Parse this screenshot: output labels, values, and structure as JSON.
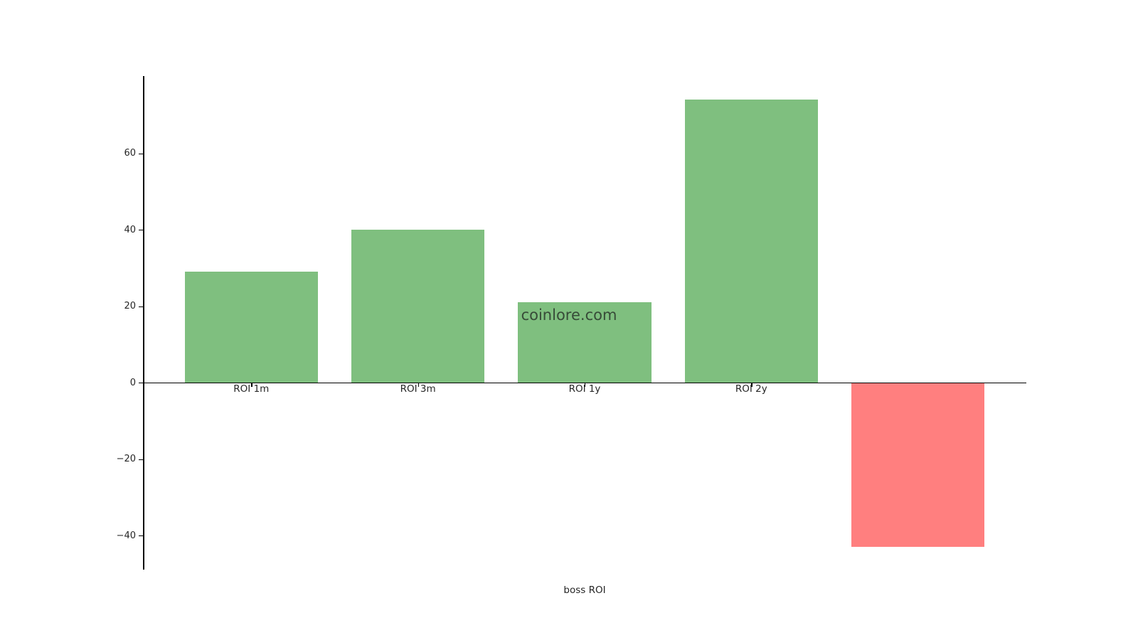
{
  "watermark": "coinlore.com",
  "colors": {
    "positive_bar": "#7fbf7f",
    "negative_bar": "#ff7f7f",
    "axis": "#000000",
    "text": "#262626"
  },
  "chart_data": {
    "type": "bar",
    "title": "",
    "xlabel": "boss ROI",
    "ylabel": "",
    "categories": [
      "ROI 1m",
      "ROI 3m",
      "ROI 1y",
      "ROI 2y",
      ""
    ],
    "values": [
      29,
      40,
      21,
      74,
      -43
    ],
    "bar_colors": [
      "#7fbf7f",
      "#7fbf7f",
      "#7fbf7f",
      "#7fbf7f",
      "#ff7f7f"
    ],
    "yticks": [
      60,
      40,
      20,
      0,
      -20,
      -40
    ],
    "ylim": [
      -48.9,
      80.2
    ],
    "grid": false,
    "legend": null,
    "annotations": [
      "coinlore.com"
    ]
  }
}
